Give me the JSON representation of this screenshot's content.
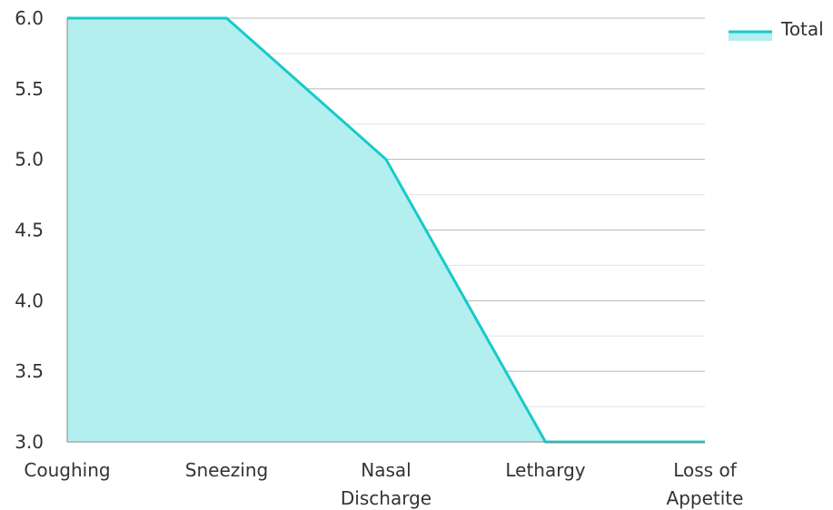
{
  "chart_data": {
    "type": "area",
    "categories": [
      [
        "Coughing"
      ],
      [
        "Sneezing"
      ],
      [
        "Nasal",
        "Discharge"
      ],
      [
        "Lethargy"
      ],
      [
        "Loss of",
        "Appetite"
      ]
    ],
    "series": [
      {
        "name": "Total",
        "values": [
          6,
          6,
          5,
          3,
          3
        ]
      }
    ],
    "ylim": [
      3.0,
      6.0
    ],
    "yticks": [
      "3.0",
      "3.5",
      "4.0",
      "4.5",
      "5.0",
      "5.5",
      "6.0"
    ],
    "grid": true,
    "legend_position": "top-right",
    "colors": {
      "line": "#17cac9",
      "fill": "#b2efee",
      "grid_major": "#b8b8b8",
      "grid_minor": "#e2e2e2",
      "axis": "#888888"
    }
  }
}
